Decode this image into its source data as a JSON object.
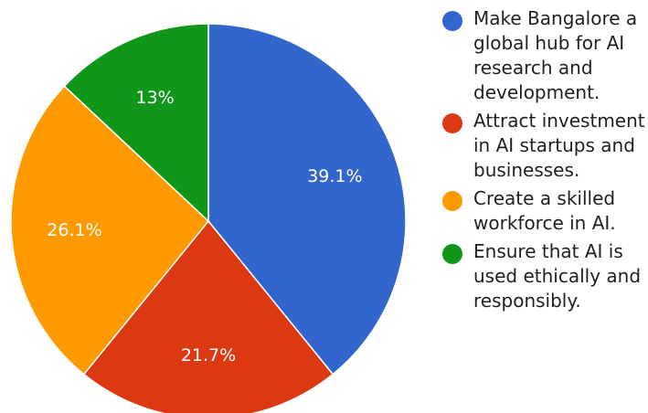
{
  "chart_data": {
    "type": "pie",
    "title": "",
    "slices": [
      {
        "label": "Make Bangalore a global hub for AI research and development.",
        "value": 39.1,
        "display": "39.1%",
        "color": "#3366cc"
      },
      {
        "label": "Attract investment in AI startups and businesses.",
        "value": 21.7,
        "display": "21.7%",
        "color": "#dc3912"
      },
      {
        "label": "Create a skilled workforce in AI.",
        "value": 26.1,
        "display": "26.1%",
        "color": "#ff9900"
      },
      {
        "label": "Ensure that AI is used ethically and responsibly.",
        "value": 13,
        "display": "13%",
        "color": "#109618"
      }
    ],
    "legend_position": "right"
  }
}
